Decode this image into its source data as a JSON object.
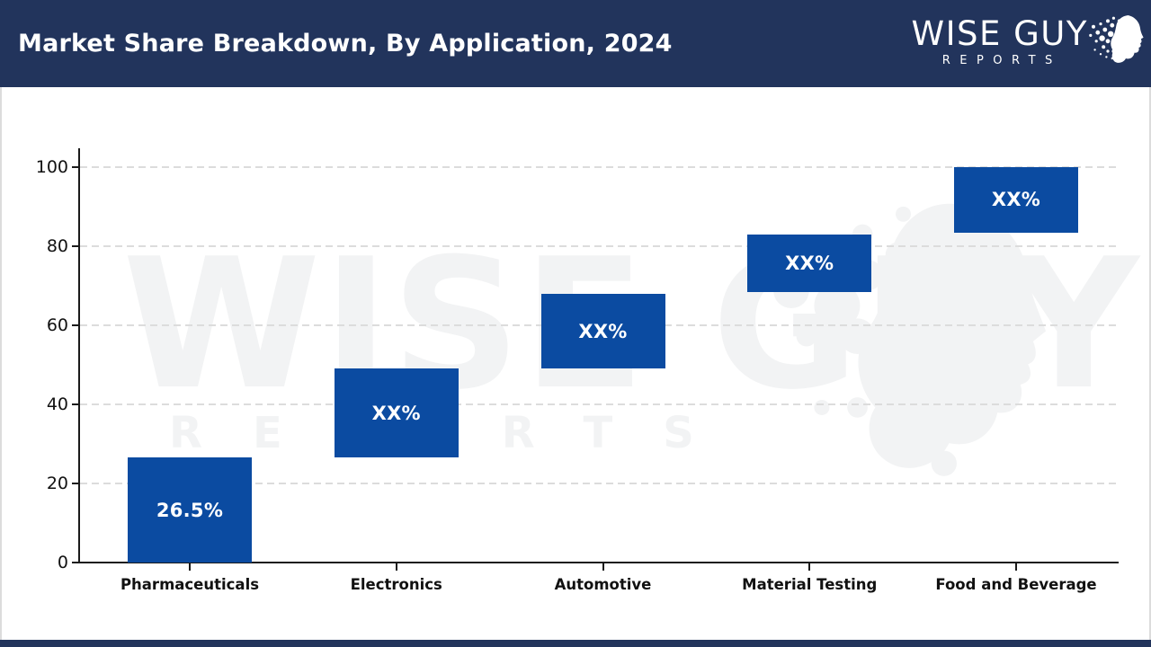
{
  "header": {
    "title": "Market Share Breakdown, By Application, 2024",
    "logo": {
      "line1": "WISE GUY",
      "line2": "REPORTS"
    }
  },
  "watermark": {
    "line1": "WISE GUY",
    "line2": "REPORTS"
  },
  "colors": {
    "header_bg": "#22345c",
    "footer_bg": "#22345c",
    "bar": "#0b4ba1",
    "bar_label": "#ffffff",
    "grid": "#dcdcdc",
    "axis": "#1a1a1a",
    "watermark": "#f2f3f4"
  },
  "chart_data": {
    "type": "bar",
    "subtype": "waterfall",
    "title": "Market Share Breakdown, By Application, 2024",
    "xlabel": "",
    "ylabel": "",
    "ylim": [
      0,
      100
    ],
    "yticks": [
      0,
      20,
      40,
      60,
      80,
      100
    ],
    "grid": "horizontal-dashed",
    "legend": "none",
    "categories": [
      "Pharmaceuticals",
      "Electronics",
      "Automotive",
      "Material Testing",
      "Food and Beverage"
    ],
    "segments": [
      {
        "category": "Pharmaceuticals",
        "start": 0,
        "end": 26.5,
        "label": "26.5%"
      },
      {
        "category": "Electronics",
        "start": 26.5,
        "end": 49,
        "label": "XX%"
      },
      {
        "category": "Automotive",
        "start": 49,
        "end": 68,
        "label": "XX%"
      },
      {
        "category": "Material Testing",
        "start": 68.5,
        "end": 83,
        "label": "XX%"
      },
      {
        "category": "Food and Beverage",
        "start": 83.5,
        "end": 100,
        "label": "XX%"
      }
    ]
  }
}
